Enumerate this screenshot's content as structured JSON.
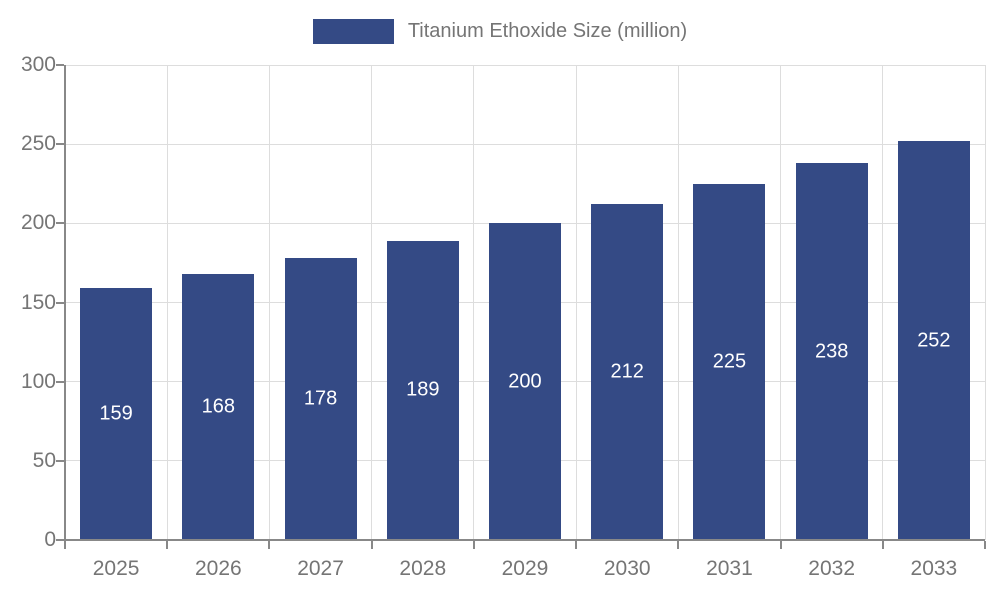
{
  "legend": {
    "label": "Titanium Ethoxide Size (million)"
  },
  "chart_data": {
    "type": "bar",
    "title": "Titanium Ethoxide Size (million)",
    "categories": [
      "2025",
      "2026",
      "2027",
      "2028",
      "2029",
      "2030",
      "2031",
      "2032",
      "2033"
    ],
    "values": [
      159,
      168,
      178,
      189,
      200,
      212,
      225,
      238,
      252
    ],
    "xlabel": "",
    "ylabel": "",
    "ylim": [
      0,
      300
    ],
    "yticks": [
      0,
      50,
      100,
      150,
      200,
      250,
      300
    ],
    "grid": true,
    "legend_position": "top-center",
    "colors": {
      "bar": "#344A85",
      "bar_label": "#FFFFFF",
      "axis_line": "#888888",
      "tick_mark": "#888888",
      "tick_label": "#757575",
      "legend_text": "#757575",
      "gridline": "#DDDDDD",
      "background": "#FFFFFF"
    }
  }
}
